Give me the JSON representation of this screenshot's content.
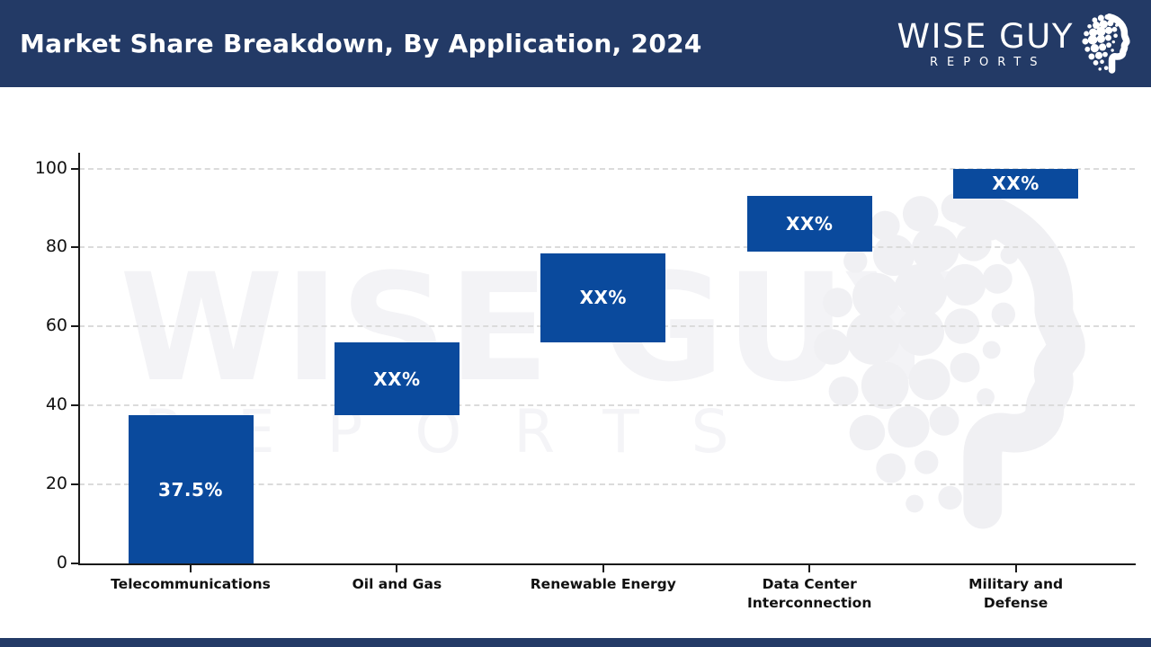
{
  "header": {
    "title": "Market Share Breakdown, By Application, 2024",
    "logo": {
      "wordmark": "WISE GUY",
      "subtitle": "REPORTS"
    }
  },
  "watermark": {
    "wordmark": "WISE GUY",
    "subtitle": "REPORTS"
  },
  "chart_data": {
    "type": "bar",
    "subtype": "floating-waterfall",
    "title": "Market Share Breakdown, By Application, 2024",
    "unit": "%",
    "categories": [
      "Telecommunications",
      "Oil and Gas",
      "Renewable Energy",
      "Data Center Interconnection",
      "Military and Defense"
    ],
    "segments": [
      {
        "category": "Telecommunications",
        "lines": [
          "Telecommunications"
        ],
        "start": 0,
        "end": 37.5,
        "value_label": "37.5%"
      },
      {
        "category": "Oil and Gas",
        "lines": [
          "Oil and Gas"
        ],
        "start": 37.5,
        "end": 56,
        "value_label": "XX%"
      },
      {
        "category": "Renewable Energy",
        "lines": [
          "Renewable Energy"
        ],
        "start": 56,
        "end": 78.5,
        "value_label": "XX%"
      },
      {
        "category": "Data Center Interconnection",
        "lines": [
          "Data Center",
          "Interconnection"
        ],
        "start": 79,
        "end": 93,
        "value_label": "XX%"
      },
      {
        "category": "Military and Defense",
        "lines": [
          "Military and",
          "Defense"
        ],
        "start": 92.5,
        "end": 100,
        "value_label": "XX%"
      }
    ],
    "y_ticks": [
      0,
      20,
      40,
      60,
      80,
      100
    ],
    "ylim": [
      0,
      104
    ],
    "grid": {
      "horizontal": true,
      "style": "dashed"
    },
    "legend": "none",
    "colors": {
      "bar": "#0A4A9D",
      "bar_label": "#FFFFFF",
      "grid": "#DBDBDB",
      "axis": "#1A1A1A",
      "header_bg": "#233A66",
      "watermark": "#F2F2F5"
    }
  }
}
